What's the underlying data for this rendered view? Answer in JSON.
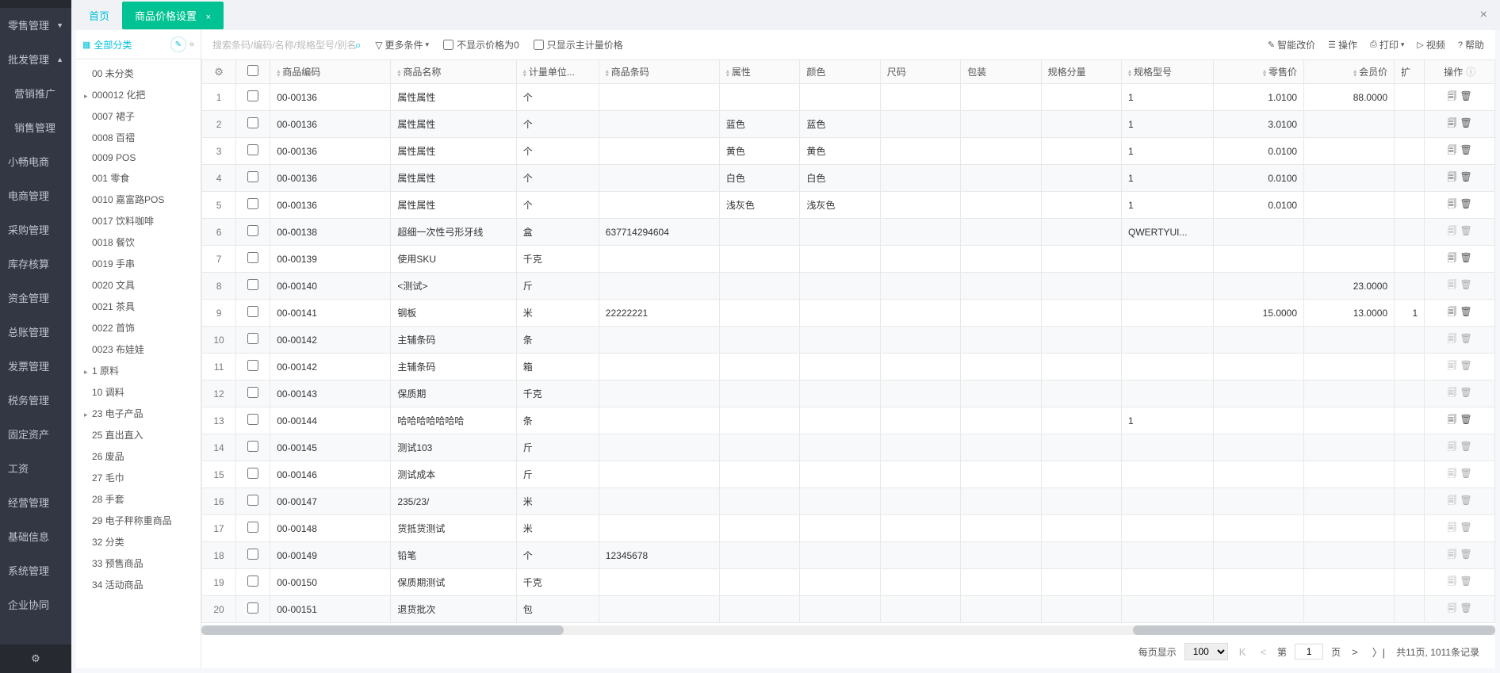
{
  "sidebar": {
    "items": [
      {
        "label": "零售管理",
        "caret": "▼"
      },
      {
        "label": "批发管理",
        "caret": "▲"
      },
      {
        "label": "营销推广",
        "sub": true
      },
      {
        "label": "销售管理",
        "sub": true
      },
      {
        "label": "小畅电商"
      },
      {
        "label": "电商管理"
      },
      {
        "label": "采购管理"
      },
      {
        "label": "库存核算"
      },
      {
        "label": "资金管理"
      },
      {
        "label": "总账管理"
      },
      {
        "label": "发票管理"
      },
      {
        "label": "税务管理"
      },
      {
        "label": "固定资产"
      },
      {
        "label": "工资"
      },
      {
        "label": "经营管理"
      },
      {
        "label": "基础信息"
      },
      {
        "label": "系统管理"
      },
      {
        "label": "企业协同"
      }
    ],
    "gear": "⚙"
  },
  "tabs": {
    "home": "首页",
    "active": "商品价格设置",
    "close_all": "×"
  },
  "tree": {
    "title": "全部分类",
    "nodes": [
      {
        "label": "00 未分类"
      },
      {
        "label": "000012 化把",
        "expand": "▸"
      },
      {
        "label": "0007 裙子"
      },
      {
        "label": "0008 百褶"
      },
      {
        "label": "0009 POS"
      },
      {
        "label": "001 零食"
      },
      {
        "label": "0010 嘉富路POS"
      },
      {
        "label": "0017 饮料咖啡"
      },
      {
        "label": "0018 餐饮"
      },
      {
        "label": "0019 手串"
      },
      {
        "label": "0020 文具"
      },
      {
        "label": "0021 茶具"
      },
      {
        "label": "0022 首饰"
      },
      {
        "label": "0023 布娃娃"
      },
      {
        "label": "1 原料",
        "expand": "▸"
      },
      {
        "label": "10 调料"
      },
      {
        "label": "23 电子产品",
        "expand": "▸"
      },
      {
        "label": "25 直出直入"
      },
      {
        "label": "26 废品"
      },
      {
        "label": "27 毛巾"
      },
      {
        "label": "28 手套"
      },
      {
        "label": "29 电子秤称重商品"
      },
      {
        "label": "32 分类"
      },
      {
        "label": "33 预售商品"
      },
      {
        "label": "34 活动商品"
      }
    ]
  },
  "toolbar": {
    "search_placeholder": "搜索条码/编码/名称/规格型号/别名",
    "more": "更多条件",
    "hide_zero": "不显示价格为0",
    "main_unit": "只显示主计量价格",
    "smart": "智能改价",
    "ops": "操作",
    "print": "打印",
    "video": "视频",
    "help": "帮助"
  },
  "columns": {
    "code": "商品编码",
    "name": "商品名称",
    "unit": "计量单位...",
    "barcode": "商品条码",
    "attr": "属性",
    "color": "颜色",
    "size": "尺码",
    "pack": "包装",
    "spec_weight": "规格分量",
    "spec_model": "规格型号",
    "retail": "零售价",
    "member": "会员价",
    "extra": "扩",
    "ops": "操作"
  },
  "rows": [
    {
      "n": "1",
      "code": "00-00136",
      "name": "属性属性",
      "unit": "个",
      "barcode": "",
      "attr": "",
      "color": "",
      "spec": "1",
      "retail": "1.0100",
      "member": "88.0000",
      "op": "dark"
    },
    {
      "n": "2",
      "code": "00-00136",
      "name": "属性属性",
      "unit": "个",
      "barcode": "",
      "attr": "蓝色",
      "color": "蓝色",
      "spec": "1",
      "retail": "3.0100",
      "member": "",
      "op": "dark"
    },
    {
      "n": "3",
      "code": "00-00136",
      "name": "属性属性",
      "unit": "个",
      "barcode": "",
      "attr": "黄色",
      "color": "黄色",
      "spec": "1",
      "retail": "0.0100",
      "member": "",
      "op": "dark"
    },
    {
      "n": "4",
      "code": "00-00136",
      "name": "属性属性",
      "unit": "个",
      "barcode": "",
      "attr": "白色",
      "color": "白色",
      "spec": "1",
      "retail": "0.0100",
      "member": "",
      "op": "dark"
    },
    {
      "n": "5",
      "code": "00-00136",
      "name": "属性属性",
      "unit": "个",
      "barcode": "",
      "attr": "浅灰色",
      "color": "浅灰色",
      "spec": "1",
      "retail": "0.0100",
      "member": "",
      "op": "dark"
    },
    {
      "n": "6",
      "code": "00-00138",
      "name": "超细一次性弓形牙线",
      "unit": "盒",
      "barcode": "637714294604",
      "attr": "",
      "color": "",
      "spec": "QWERTYUI...",
      "retail": "",
      "member": "",
      "op": "light"
    },
    {
      "n": "7",
      "code": "00-00139",
      "name": "使用SKU",
      "unit": "千克",
      "barcode": "",
      "attr": "",
      "color": "",
      "spec": "",
      "retail": "",
      "member": "",
      "op": "dark"
    },
    {
      "n": "8",
      "code": "00-00140",
      "name": "<测试>",
      "unit": "斤",
      "barcode": "",
      "attr": "",
      "color": "",
      "spec": "",
      "retail": "",
      "member": "23.0000",
      "op": "light"
    },
    {
      "n": "9",
      "code": "00-00141",
      "name": "钢板",
      "unit": "米",
      "barcode": "22222221",
      "attr": "",
      "color": "",
      "spec": "",
      "retail": "15.0000",
      "member": "13.0000",
      "extra": "1",
      "op": "dark"
    },
    {
      "n": "10",
      "code": "00-00142",
      "name": "主辅条码",
      "unit": "条",
      "barcode": "",
      "attr": "",
      "color": "",
      "spec": "",
      "retail": "",
      "member": "",
      "op": "light"
    },
    {
      "n": "11",
      "code": "00-00142",
      "name": "主辅条码",
      "unit": "箱",
      "barcode": "",
      "attr": "",
      "color": "",
      "spec": "",
      "retail": "",
      "member": "",
      "op": "light"
    },
    {
      "n": "12",
      "code": "00-00143",
      "name": "保质期",
      "unit": "千克",
      "barcode": "",
      "attr": "",
      "color": "",
      "spec": "",
      "retail": "",
      "member": "",
      "op": "light"
    },
    {
      "n": "13",
      "code": "00-00144",
      "name": "哈哈哈哈哈哈哈",
      "unit": "条",
      "barcode": "",
      "attr": "",
      "color": "",
      "spec": "1",
      "retail": "",
      "member": "",
      "op": "dark"
    },
    {
      "n": "14",
      "code": "00-00145",
      "name": "测试103",
      "unit": "斤",
      "barcode": "",
      "attr": "",
      "color": "",
      "spec": "",
      "retail": "",
      "member": "",
      "op": "light"
    },
    {
      "n": "15",
      "code": "00-00146",
      "name": "测试成本",
      "unit": "斤",
      "barcode": "",
      "attr": "",
      "color": "",
      "spec": "",
      "retail": "",
      "member": "",
      "op": "light"
    },
    {
      "n": "16",
      "code": "00-00147",
      "name": "235/23/",
      "unit": "米",
      "barcode": "",
      "attr": "",
      "color": "",
      "spec": "",
      "retail": "",
      "member": "",
      "op": "light"
    },
    {
      "n": "17",
      "code": "00-00148",
      "name": "货抵货测试",
      "unit": "米",
      "barcode": "",
      "attr": "",
      "color": "",
      "spec": "",
      "retail": "",
      "member": "",
      "op": "light"
    },
    {
      "n": "18",
      "code": "00-00149",
      "name": "铅笔",
      "unit": "个",
      "barcode": "12345678",
      "attr": "",
      "color": "",
      "spec": "",
      "retail": "",
      "member": "",
      "op": "light"
    },
    {
      "n": "19",
      "code": "00-00150",
      "name": "保质期测试",
      "unit": "千克",
      "barcode": "",
      "attr": "",
      "color": "",
      "spec": "",
      "retail": "",
      "member": "",
      "op": "light"
    },
    {
      "n": "20",
      "code": "00-00151",
      "name": "退货批次",
      "unit": "包",
      "barcode": "",
      "attr": "",
      "color": "",
      "spec": "",
      "retail": "",
      "member": "",
      "op": "light"
    }
  ],
  "pager": {
    "per_page_label": "每页显示",
    "per_page": "100",
    "page_prefix": "第",
    "page": "1",
    "page_suffix": "页",
    "summary": "共11页, 1011条记录"
  }
}
